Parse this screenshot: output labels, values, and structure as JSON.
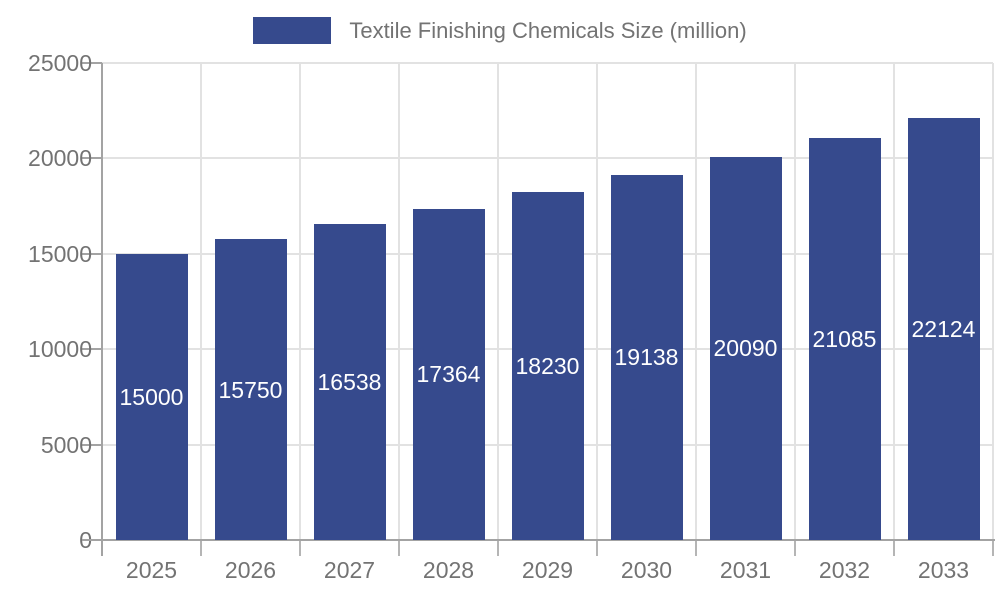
{
  "legend": {
    "label": "Textile Finishing Chemicals Size (million)"
  },
  "chart_data": {
    "type": "bar",
    "title": "Textile Finishing Chemicals Size (million)",
    "categories": [
      "2025",
      "2026",
      "2027",
      "2028",
      "2029",
      "2030",
      "2031",
      "2032",
      "2033"
    ],
    "series": [
      {
        "name": "Textile Finishing Chemicals Size (million)",
        "values": [
          15000,
          15750,
          16538,
          17364,
          18230,
          19138,
          20090,
          21085,
          22124
        ]
      }
    ],
    "value_labels_shown": true,
    "xlabel": "",
    "ylabel": "",
    "ylim": [
      0,
      25000
    ],
    "yticks": [
      0,
      5000,
      10000,
      15000,
      20000,
      25000
    ],
    "grid": "horizontal and vertical light gray gridlines",
    "legend_position": "top-center",
    "bar_color": "#364a8d",
    "value_label_color": "#ffffff",
    "axis_text_color": "#737373",
    "axis_line_color": "#a3a3a3",
    "grid_color": "#e2e2e2"
  }
}
